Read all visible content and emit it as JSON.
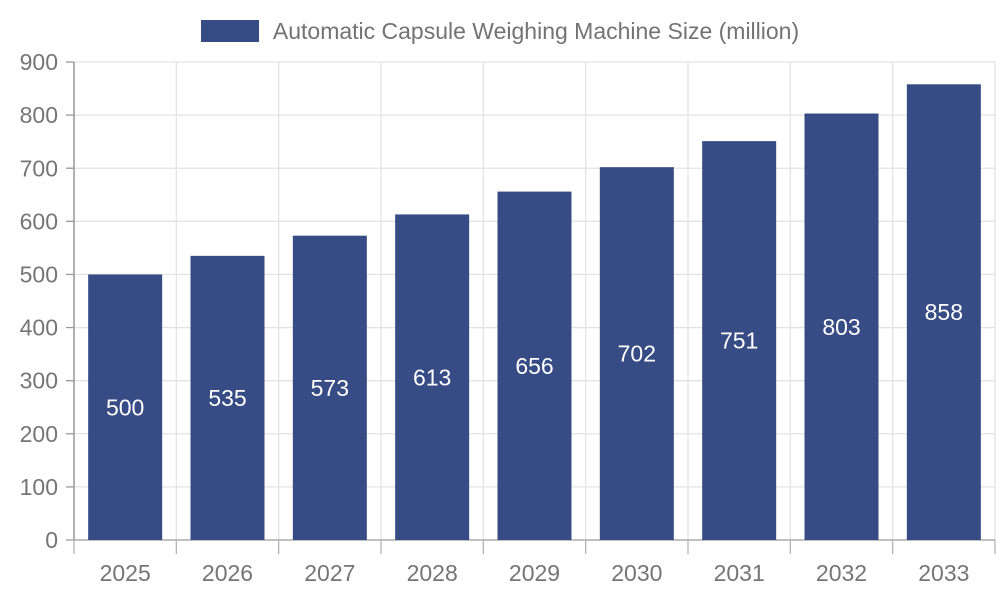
{
  "chart_data": {
    "type": "bar",
    "title": "",
    "legend": {
      "label": "Automatic Capsule Weighing Machine Size (million)",
      "position": "top-center"
    },
    "categories": [
      "2025",
      "2026",
      "2027",
      "2028",
      "2029",
      "2030",
      "2031",
      "2032",
      "2033"
    ],
    "values": [
      500,
      535,
      573,
      613,
      656,
      702,
      751,
      803,
      858
    ],
    "xlabel": "",
    "ylabel": "",
    "ylim": [
      0,
      900
    ],
    "ytick_step": 100,
    "ytick_labels": [
      "0",
      "100",
      "200",
      "300",
      "400",
      "500",
      "600",
      "700",
      "800",
      "900"
    ],
    "grid": "horizontal-and-vertical",
    "bar_value_labels": "centered-inside-bars-white"
  },
  "colors": {
    "bar": "#374b84",
    "bar_label": "#ffffff",
    "legend_text": "#737373",
    "axis_text": "#757575",
    "y_axis_line": "#999999",
    "baseline": "#ababab",
    "gridline": "#e3e3e3",
    "x_tick": "#b3b3b3",
    "y_tick": "#999999",
    "background": "#ffffff"
  }
}
